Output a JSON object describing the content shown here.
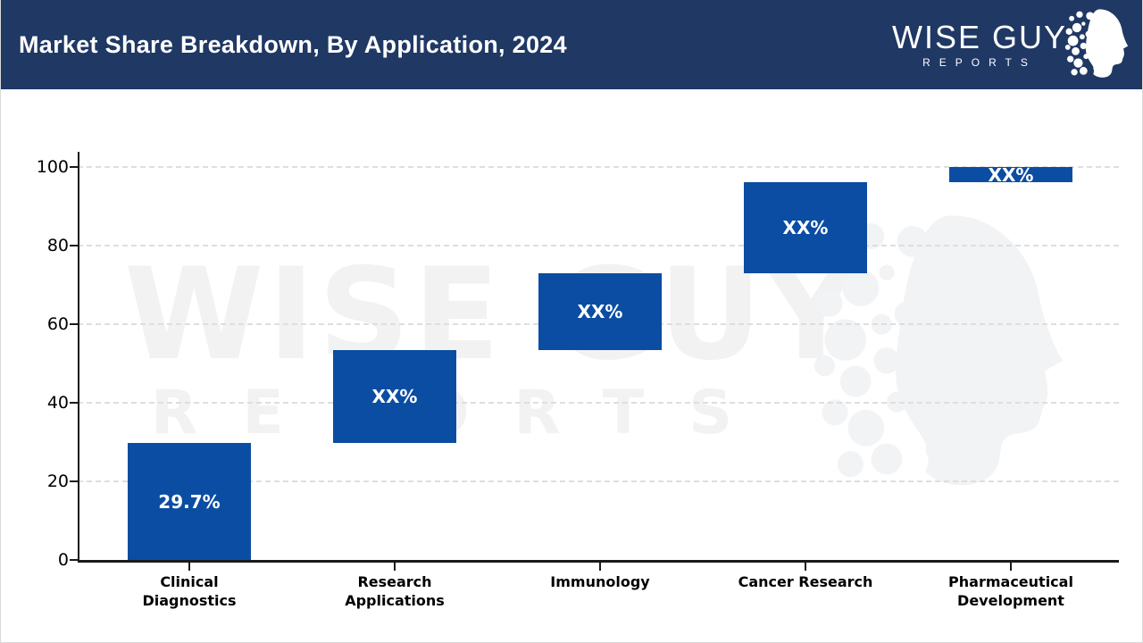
{
  "header": {
    "title": "Market Share Breakdown, By Application, 2024",
    "logo": {
      "line1": "WISE GUY",
      "line2": "REPORTS"
    }
  },
  "watermark": {
    "line1": "WISE GUY",
    "line2": "REPORTS"
  },
  "colors": {
    "header_bg": "#1f3864",
    "bar": "#0b4da2",
    "bar_label_inside": "#ffffff",
    "grid": "#dedede",
    "axis": "#1a1a1a",
    "watermark": "#f2f2f2"
  },
  "chart_data": {
    "type": "bar",
    "subtype": "floating-waterfall",
    "title": "Market Share Breakdown, By Application, 2024",
    "categories": [
      "Clinical\nDiagnostics",
      "Research\nApplications",
      "Immunology",
      "Cancer Research",
      "Pharmaceutical\nDevelopment"
    ],
    "bars": [
      {
        "category": "Clinical Diagnostics",
        "start": 0,
        "end": 29.7,
        "label": "29.7%"
      },
      {
        "category": "Research Applications",
        "start": 29.7,
        "end": 53.4,
        "label": "XX%"
      },
      {
        "category": "Immunology",
        "start": 53.4,
        "end": 73.0,
        "label": "XX%"
      },
      {
        "category": "Cancer Research",
        "start": 73.0,
        "end": 96.1,
        "label": "XX%"
      },
      {
        "category": "Pharmaceutical Development",
        "start": 96.1,
        "end": 100.0,
        "label": "XX%"
      }
    ],
    "ylim": [
      0,
      100
    ],
    "yticks": [
      0,
      20,
      40,
      60,
      80,
      100
    ],
    "xlabel": "",
    "ylabel": "",
    "grid": "horizontal-dashed",
    "legend": "none"
  }
}
